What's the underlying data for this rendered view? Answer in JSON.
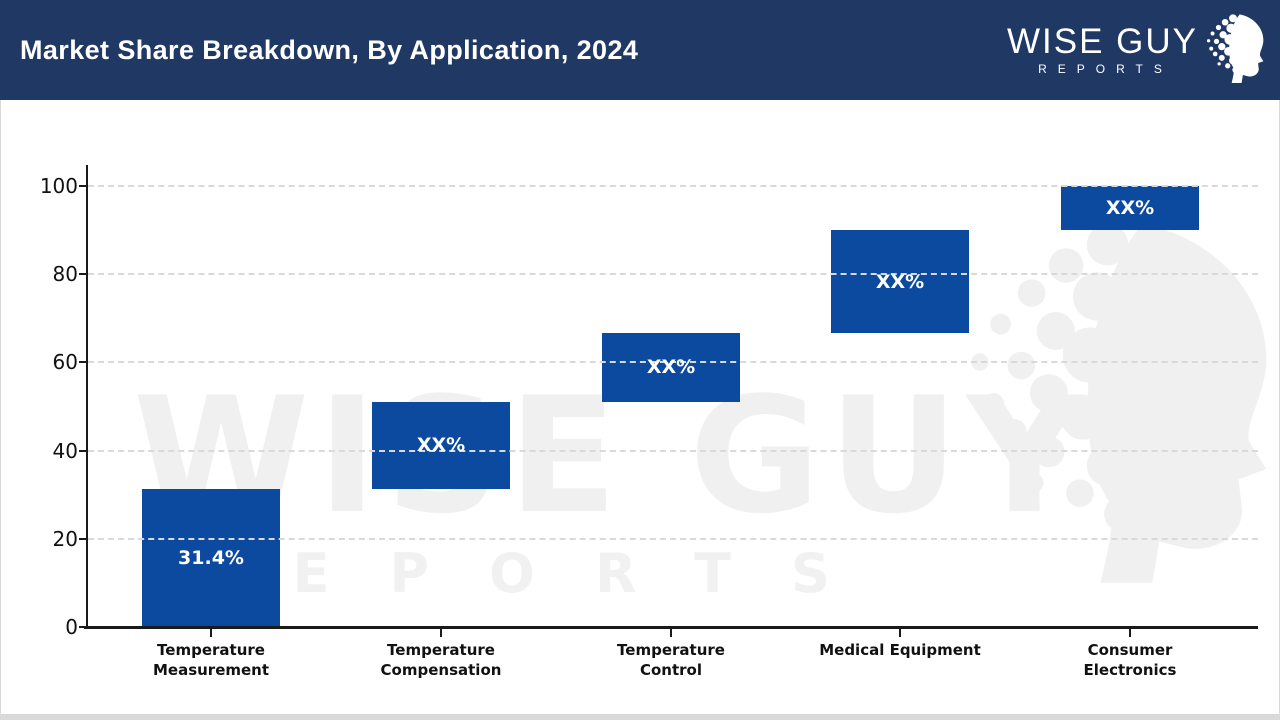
{
  "header": {
    "title": "Market Share Breakdown, By Application, 2024",
    "logo": {
      "name_line": "WISE GUY",
      "sub_line": "REPORTS"
    }
  },
  "watermark": {
    "name_line": "WISE GUY",
    "sub_line": "REPORTS"
  },
  "colors": {
    "header_bg": "#1f3864",
    "bar": "#0b4a9e",
    "bar_label": "#ffffff",
    "grid": "#d9d9d9",
    "axis": "#1a1a1a",
    "watermark": "#f0f0f0"
  },
  "chart_data": {
    "type": "bar",
    "subtype": "waterfall (floating cumulative segments)",
    "title": "Market Share Breakdown, By Application, 2024",
    "xlabel": "",
    "ylabel": "",
    "ylim": [
      0,
      105
    ],
    "yticks": [
      0,
      20,
      40,
      60,
      80,
      100
    ],
    "grid": "horizontal dashed",
    "legend": "none",
    "categories": [
      "Temperature Measurement",
      "Temperature Compensation",
      "Temperature Control",
      "Medical Equipment",
      "Consumer Electronics"
    ],
    "categories_display": [
      "Temperature\nMeasurement",
      "Temperature\nCompensation",
      "Temperature\nControl",
      "Medical Equipment",
      "Consumer\nElectronics"
    ],
    "bars": [
      {
        "category": "Temperature Measurement",
        "start": 0,
        "end": 31.4,
        "value_label": "31.4%"
      },
      {
        "category": "Temperature Compensation",
        "start": 31.4,
        "end": 51.1,
        "value_label": "XX%"
      },
      {
        "category": "Temperature Control",
        "start": 51.1,
        "end": 66.6,
        "value_label": "XX%"
      },
      {
        "category": "Medical Equipment",
        "start": 66.6,
        "end": 90.0,
        "value_label": "XX%"
      },
      {
        "category": "Consumer Electronics",
        "start": 90.0,
        "end": 100.0,
        "value_label": "XX%"
      }
    ]
  }
}
